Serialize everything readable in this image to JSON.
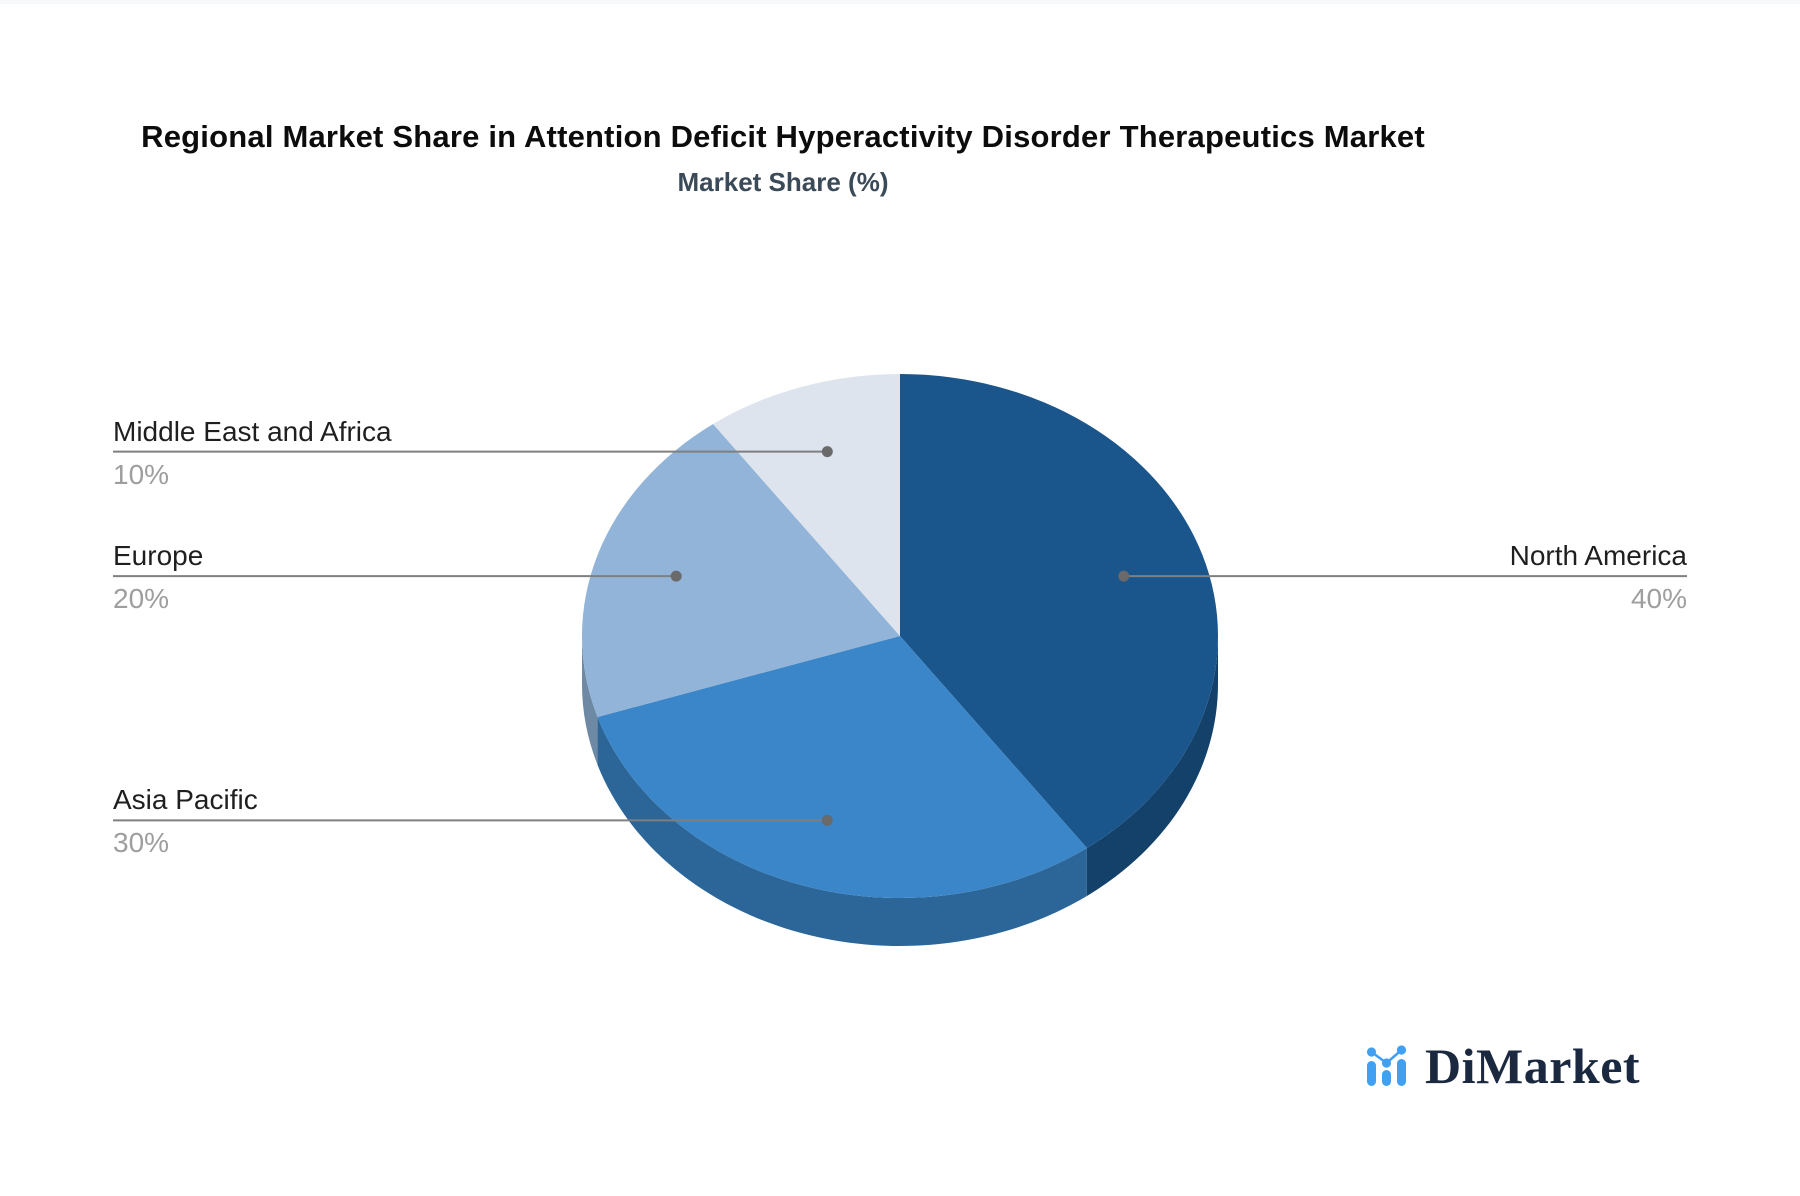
{
  "chart_data": {
    "type": "pie",
    "title": "Regional Market Share in Attention Deficit Hyperactivity Disorder Therapeutics Market",
    "subtitle": "Market Share (%)",
    "unit": "%",
    "style": "3d-pie",
    "start_angle": "top",
    "direction": "clockwise",
    "slices": [
      {
        "label": "North America",
        "value": 40,
        "color": "#1a568c",
        "label_side": "right"
      },
      {
        "label": "Asia Pacific",
        "value": 30,
        "color": "#3a86c8",
        "label_side": "left"
      },
      {
        "label": "Europe",
        "value": 20,
        "color": "#91b4d8",
        "label_side": "left"
      },
      {
        "label": "Middle East and Africa",
        "value": 10,
        "color": "#dde4ee",
        "label_side": "left"
      }
    ],
    "title_color": "#0c0c0c",
    "subtitle_color": "#3b4a58",
    "label_color": "#1f1f1f",
    "value_color": "#9e9e9e",
    "leader_line_color": "#7f7f7f",
    "leader_dot_color": "#6a6a6a",
    "legend": "none",
    "grid": "off"
  },
  "brand": {
    "name": "DiMarket",
    "icon_color": "#42a0f2",
    "text_color": "#1b2940"
  }
}
